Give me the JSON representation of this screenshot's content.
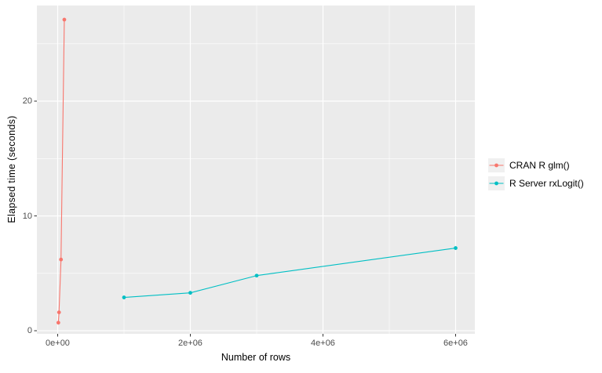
{
  "figure": {
    "background": "#FFFFFF"
  },
  "chart_data": {
    "type": "line",
    "title": "",
    "xlabel": "Number of rows",
    "ylabel": "Elapsed time (seconds)",
    "xlim": [
      -313600,
      6290000
    ],
    "ylim": [
      -0.27,
      28.33
    ],
    "grid": "white major and minor gridlines on gray panel",
    "legend_position": "right-middle",
    "panel_bg": "#EBEBEB",
    "grid_color": "#FFFFFF",
    "tick_mark_color": "#333333",
    "tick_label_color": "#4D4D4D",
    "legend_key_bg": "#F0F0F0",
    "xticks": [
      {
        "value": 0,
        "label": "0e+00"
      },
      {
        "value": 2000000,
        "label": "2e+06"
      },
      {
        "value": 4000000,
        "label": "4e+06"
      },
      {
        "value": 6000000,
        "label": "6e+06"
      }
    ],
    "xminor": [
      1000000,
      3000000,
      5000000
    ],
    "yticks": [
      {
        "value": 0,
        "label": "0"
      },
      {
        "value": 10,
        "label": "10"
      },
      {
        "value": 20,
        "label": "20"
      }
    ],
    "yminor": [
      5,
      15,
      25
    ],
    "series": [
      {
        "name": "CRAN R glm()",
        "color": "#F8766D",
        "points": [
          [
            10000,
            0.7
          ],
          [
            20000,
            1.6
          ],
          [
            50000,
            6.2
          ],
          [
            100000,
            27.1
          ]
        ]
      },
      {
        "name": "R Server rxLogit()",
        "color": "#00BFC4",
        "points": [
          [
            1000000,
            2.9
          ],
          [
            2000000,
            3.3
          ],
          [
            3000000,
            4.8
          ],
          [
            6000000,
            7.2
          ]
        ]
      }
    ]
  }
}
